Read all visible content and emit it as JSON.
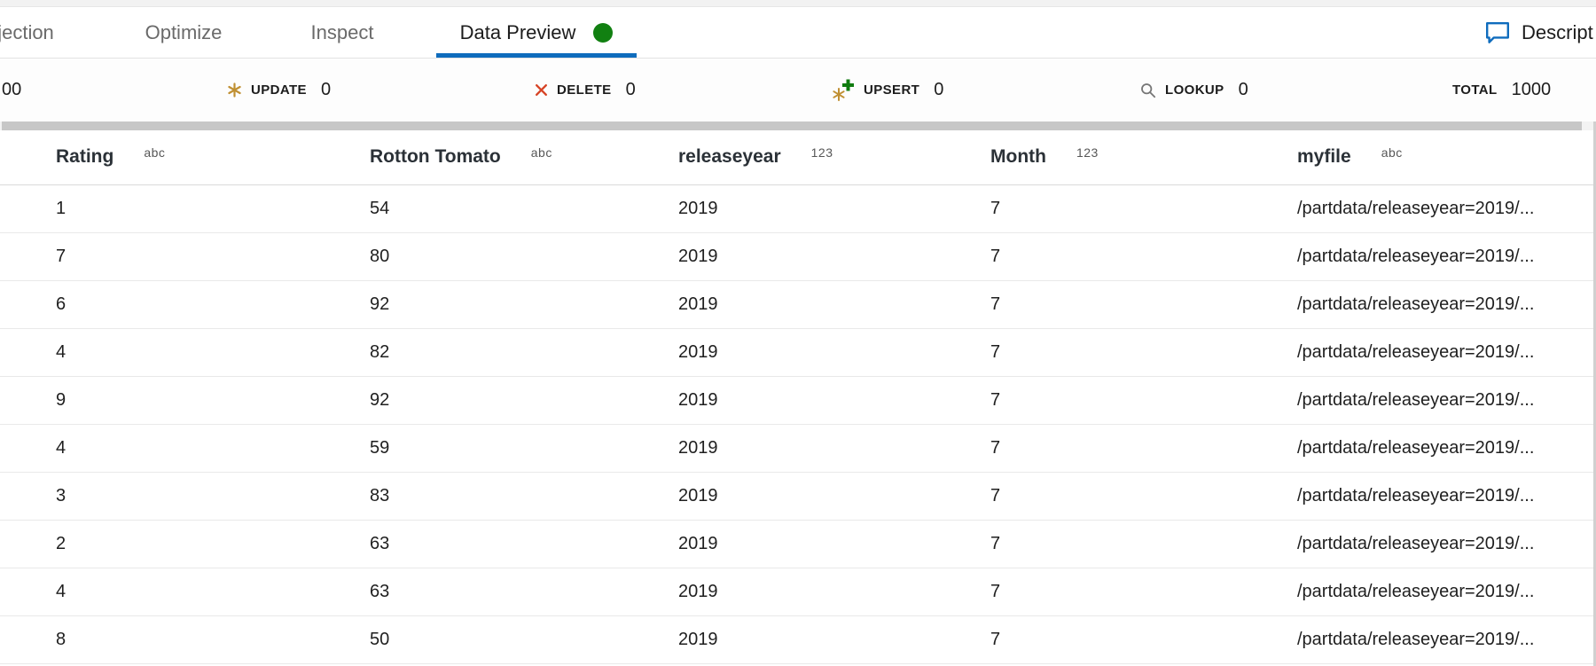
{
  "tab_bar": {
    "tabs": [
      {
        "label": "jection",
        "state": "inactive"
      },
      {
        "label": "Optimize",
        "state": "inactive"
      },
      {
        "label": "Inspect",
        "state": "inactive"
      },
      {
        "label": "Data Preview",
        "state": "active",
        "has_status_dot": true
      }
    ],
    "description_button": {
      "label": "Descript",
      "icon": "comment-icon"
    }
  },
  "stats_bar": {
    "insert_partial_value": "00",
    "stats": [
      {
        "label": "UPDATE",
        "value": "0",
        "icon": "asterisk-icon"
      },
      {
        "label": "DELETE",
        "value": "0",
        "icon": "x-icon"
      },
      {
        "label": "UPSERT",
        "value": "0",
        "icon": "asterisk-plus-icon"
      },
      {
        "label": "LOOKUP",
        "value": "0",
        "icon": "magnifier-icon"
      },
      {
        "label": "TOTAL",
        "value": "1000",
        "icon": "none"
      }
    ]
  },
  "table": {
    "columns": [
      {
        "name": "Rating",
        "type_badge": "abc"
      },
      {
        "name": "Rotton Tomato",
        "type_badge": "abc"
      },
      {
        "name": "releaseyear",
        "type_badge": "123"
      },
      {
        "name": "Month",
        "type_badge": "123"
      },
      {
        "name": "myfile",
        "type_badge": "abc"
      }
    ],
    "rows": [
      [
        "1",
        "54",
        "2019",
        "7",
        "/partdata/releaseyear=2019/..."
      ],
      [
        "7",
        "80",
        "2019",
        "7",
        "/partdata/releaseyear=2019/..."
      ],
      [
        "6",
        "92",
        "2019",
        "7",
        "/partdata/releaseyear=2019/..."
      ],
      [
        "4",
        "82",
        "2019",
        "7",
        "/partdata/releaseyear=2019/..."
      ],
      [
        "9",
        "92",
        "2019",
        "7",
        "/partdata/releaseyear=2019/..."
      ],
      [
        "4",
        "59",
        "2019",
        "7",
        "/partdata/releaseyear=2019/..."
      ],
      [
        "3",
        "83",
        "2019",
        "7",
        "/partdata/releaseyear=2019/..."
      ],
      [
        "2",
        "63",
        "2019",
        "7",
        "/partdata/releaseyear=2019/..."
      ],
      [
        "4",
        "63",
        "2019",
        "7",
        "/partdata/releaseyear=2019/..."
      ],
      [
        "8",
        "50",
        "2019",
        "7",
        "/partdata/releaseyear=2019/..."
      ]
    ]
  },
  "colors": {
    "accent_blue": "#0f6cbd",
    "status_dot_green": "#118011",
    "update_gold": "#c09033",
    "delete_red": "#d74426",
    "upsert_green": "#107c10",
    "lookup_gray": "#767676"
  }
}
